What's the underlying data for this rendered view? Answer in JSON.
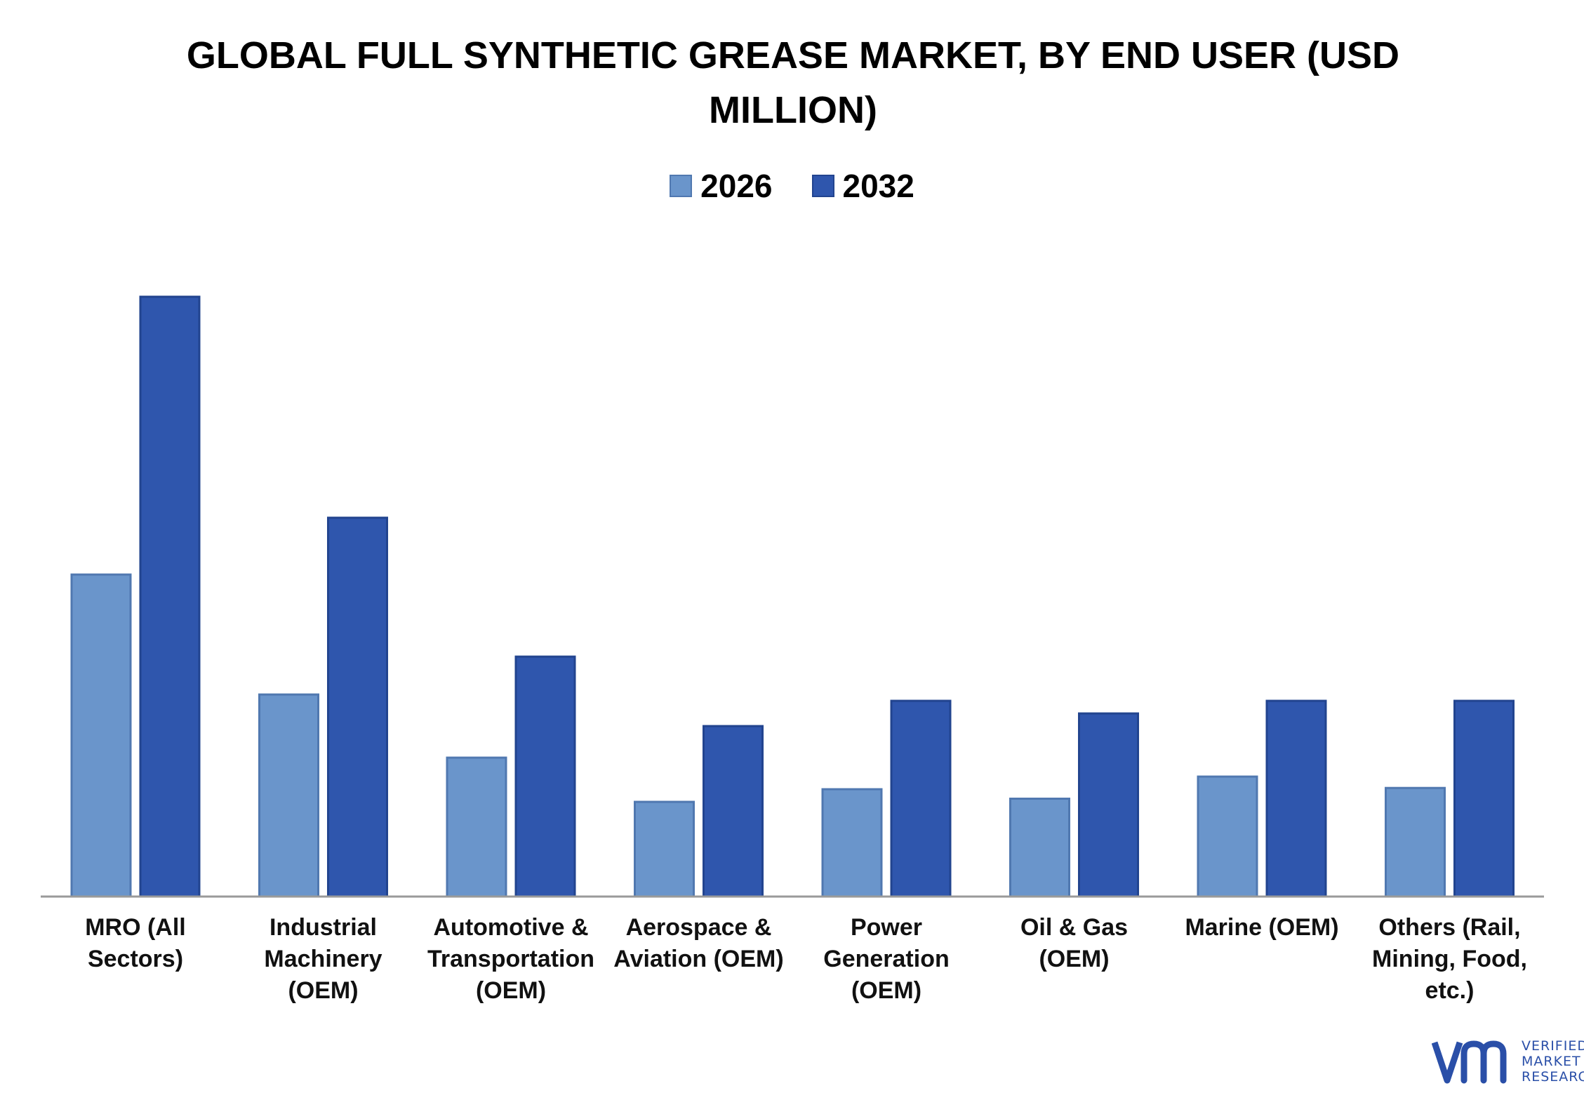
{
  "chart_data": {
    "type": "bar",
    "title": "GLOBAL FULL SYNTHETIC GREASE MARKET, BY END USER (USD MILLION)",
    "categories": [
      "MRO (All Sectors)",
      "Industrial Machinery (OEM)",
      "Automotive & Transportation (OEM)",
      "Aerospace & Aviation (OEM)",
      "Power Generation (OEM)",
      "Oil & Gas (OEM)",
      "Marine (OEM)",
      "Others (Rail, Mining, Food, etc.)"
    ],
    "series": [
      {
        "name": "2026",
        "color": "#6a95cb",
        "values": [
          51,
          32,
          22,
          15,
          17,
          15.5,
          19,
          17.2
        ]
      },
      {
        "name": "2032",
        "color": "#2f56ad",
        "values": [
          95,
          60,
          38,
          27,
          31,
          29,
          31,
          31
        ]
      }
    ],
    "ylim": [
      0,
      100
    ],
    "grid": false,
    "legend_position": "top-center"
  },
  "logo": {
    "line1": "VERIFIED",
    "line2": "MARKET",
    "line3": "RESEARCH"
  }
}
